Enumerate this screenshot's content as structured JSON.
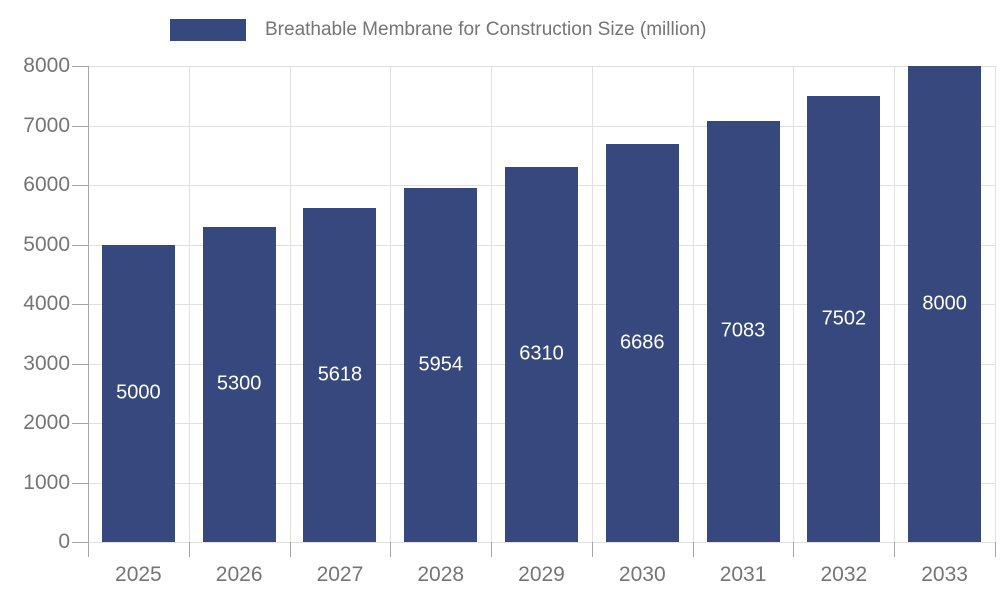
{
  "legend": {
    "label": "Breathable Membrane for Construction Size (million)",
    "swatch_color": "#36487E"
  },
  "chart_data": {
    "type": "bar",
    "title": "Breathable Membrane for Construction Size (million)",
    "series_name": "Breathable Membrane for Construction Size (million)",
    "categories": [
      "2025",
      "2026",
      "2027",
      "2028",
      "2029",
      "2030",
      "2031",
      "2032",
      "2033"
    ],
    "values": [
      5000,
      5300,
      5618,
      5954,
      6310,
      6686,
      7083,
      7502,
      8000
    ],
    "data_labels": [
      "5000",
      "5300",
      "5618",
      "5954",
      "6310",
      "6686",
      "7083",
      "7502",
      "8000"
    ],
    "ytick_labels": [
      "0",
      "1000",
      "2000",
      "3000",
      "4000",
      "5000",
      "6000",
      "7000",
      "8000"
    ],
    "xlabel": "",
    "ylabel": "",
    "ylim": [
      0,
      8000
    ],
    "ytick_step": 1000,
    "grid": true,
    "legend_position": "top",
    "colors": {
      "bar": "#36487E",
      "bar_label_text": "#ffffff",
      "axis_text": "#757575",
      "gridline": "#e0e0e0",
      "axis_line": "#a6a6a6",
      "background": "#ffffff"
    }
  }
}
